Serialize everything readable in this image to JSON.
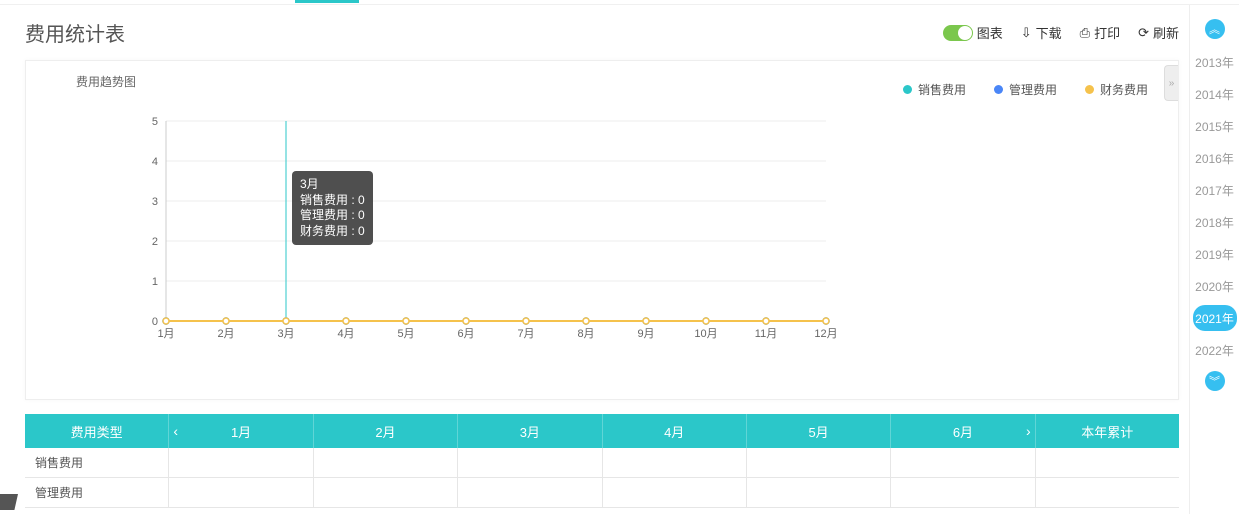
{
  "page": {
    "title": "费用统计表"
  },
  "toolbar": {
    "chart_toggle_label": "图表",
    "download_label": "下载",
    "print_label": "打印",
    "refresh_label": "刷新"
  },
  "chart": {
    "type": "line",
    "title": "费用趋势图",
    "background_color": "#ffffff",
    "grid_color": "#eeeeee",
    "axis_color": "#cccccc",
    "axis_text_color": "#666666",
    "axis_fontsize": 11,
    "x_labels": [
      "1月",
      "2月",
      "3月",
      "4月",
      "5月",
      "6月",
      "7月",
      "8月",
      "9月",
      "10月",
      "11月",
      "12月"
    ],
    "y_min": 0,
    "y_max": 5,
    "y_ticks": [
      0,
      1,
      2,
      3,
      4,
      5
    ],
    "series": [
      {
        "name": "销售费用",
        "color": "#2bc7c9",
        "values": [
          0,
          0,
          0,
          0,
          0,
          0,
          0,
          0,
          0,
          0,
          0,
          0
        ]
      },
      {
        "name": "管理费用",
        "color": "#4a86f7",
        "values": [
          0,
          0,
          0,
          0,
          0,
          0,
          0,
          0,
          0,
          0,
          0,
          0
        ]
      },
      {
        "name": "财务费用",
        "color": "#f5c24c",
        "values": [
          0,
          0,
          0,
          0,
          0,
          0,
          0,
          0,
          0,
          0,
          0,
          0
        ]
      }
    ],
    "highlight_index": 2,
    "highlight_line_color": "#2bc7c9",
    "marker_radius": 3,
    "line_width": 2,
    "tooltip": {
      "title": "3月",
      "lines": [
        "销售费用 : 0",
        "管理费用 : 0",
        "财务费用 : 0"
      ],
      "bg": "rgba(60,60,60,0.9)",
      "text_color": "#ffffff",
      "fontsize": 12
    }
  },
  "legend": [
    {
      "label": "销售费用",
      "color": "#2bc7c9"
    },
    {
      "label": "管理费用",
      "color": "#4a86f7"
    },
    {
      "label": "财务费用",
      "color": "#f5c24c"
    }
  ],
  "table": {
    "header_bg": "#2bc7c9",
    "header_text_color": "#ffffff",
    "columns": [
      "费用类型",
      "1月",
      "2月",
      "3月",
      "4月",
      "5月",
      "6月",
      "本年累计"
    ],
    "rows": [
      [
        "销售费用",
        "",
        "",
        "",
        "",
        "",
        "",
        ""
      ],
      [
        "管理费用",
        "",
        "",
        "",
        "",
        "",
        "",
        ""
      ]
    ]
  },
  "years": {
    "items": [
      "2013年",
      "2014年",
      "2015年",
      "2016年",
      "2017年",
      "2018年",
      "2019年",
      "2020年",
      "2021年",
      "2022年"
    ],
    "active_index": 8,
    "up_icon": "︽",
    "down_icon": "︾",
    "active_bg": "#36bff0",
    "active_text": "#ffffff"
  }
}
